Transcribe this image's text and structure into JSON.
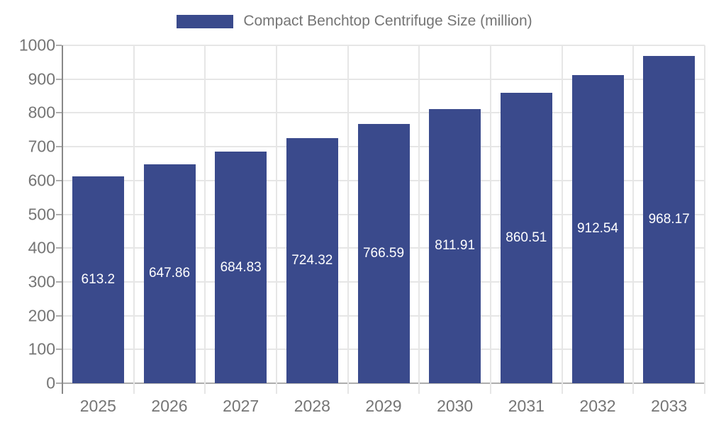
{
  "chart_data": {
    "type": "bar",
    "title": "Compact Benchtop Centrifuge Size (million)",
    "legend": {
      "label": "Compact Benchtop Centrifuge Size (million)",
      "position": "top-center"
    },
    "categories": [
      "2025",
      "2026",
      "2027",
      "2028",
      "2029",
      "2030",
      "2031",
      "2032",
      "2033"
    ],
    "values": [
      613.2,
      647.86,
      684.83,
      724.32,
      766.59,
      811.91,
      860.51,
      912.54,
      968.17
    ],
    "value_labels": [
      "613.2",
      "647.86",
      "684.83",
      "724.32",
      "766.59",
      "811.91",
      "860.51",
      "912.54",
      "968.17"
    ],
    "xlabel": "",
    "ylabel": "",
    "ylim": [
      0,
      1000
    ],
    "yticks": [
      0,
      100,
      200,
      300,
      400,
      500,
      600,
      700,
      800,
      900,
      1000
    ],
    "grid": true,
    "colors": {
      "bar": "#3A4A8C",
      "bar_label_text": "#FFFFFF",
      "axis_text": "#757575",
      "gridline": "#E6E6E6",
      "y_axis_line": "#888888",
      "x_axis_line": "#ADADAD",
      "background": "#FFFFFF"
    }
  }
}
